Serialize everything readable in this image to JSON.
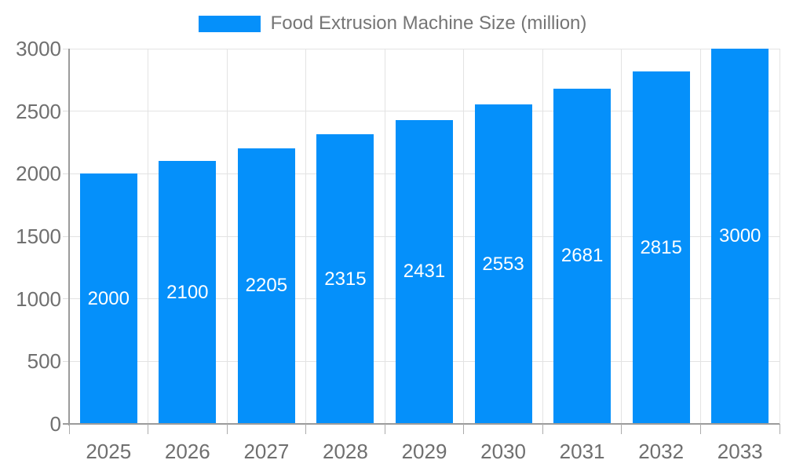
{
  "legend": {
    "label": "Food Extrusion Machine Size (million)"
  },
  "chart_data": {
    "type": "bar",
    "title": "Food Extrusion Machine Size (million)",
    "series_name": "Food Extrusion Machine Size (million)",
    "categories": [
      "2025",
      "2026",
      "2027",
      "2028",
      "2029",
      "2030",
      "2031",
      "2032",
      "2033"
    ],
    "values": [
      2000,
      2100,
      2205,
      2315,
      2431,
      2553,
      2681,
      2815,
      3000
    ],
    "xlabel": "",
    "ylabel": "",
    "ylim": [
      0,
      3000
    ],
    "y_ticks": [
      0,
      500,
      1000,
      1500,
      2000,
      2500,
      3000
    ],
    "grid": true,
    "legend_position": "top",
    "value_labels": "inside-center",
    "colors": {
      "bar": "#0590fa",
      "value_label": "#ffffff",
      "axis_line": "#9b9b9b",
      "grid_line": "#e3e3e3",
      "axis_text": "#6f6f6f",
      "legend_text": "#757575"
    }
  }
}
